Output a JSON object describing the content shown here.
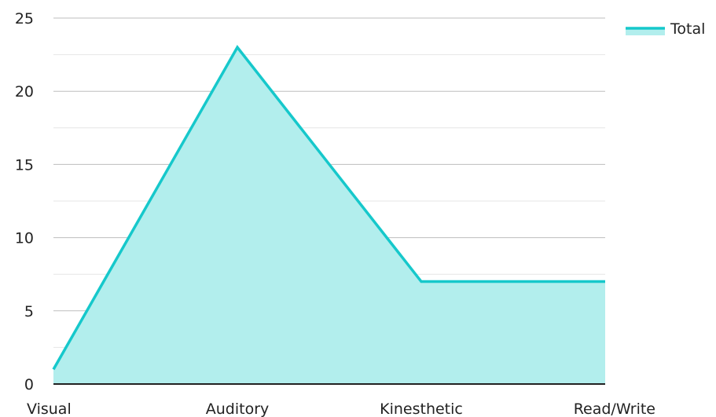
{
  "chart_data": {
    "type": "area",
    "categories": [
      "Visual",
      "Auditory",
      "Kinesthetic",
      "Read/Write"
    ],
    "series": [
      {
        "name": "Total",
        "values": [
          1,
          23,
          7,
          7
        ]
      }
    ],
    "ylim": [
      0,
      25
    ],
    "y_ticks": [
      0,
      5,
      10,
      15,
      20,
      25
    ],
    "y_tick_labels": [
      "0",
      "5",
      "10",
      "15",
      "20",
      "25"
    ],
    "grid": true,
    "legend_position": "top-right",
    "colors": {
      "line": "#16c8cb",
      "fill": "#b2eeed",
      "major_grid": "#bdbdbd",
      "minor_grid": "#e6e6e6",
      "axis": "#222222"
    }
  }
}
